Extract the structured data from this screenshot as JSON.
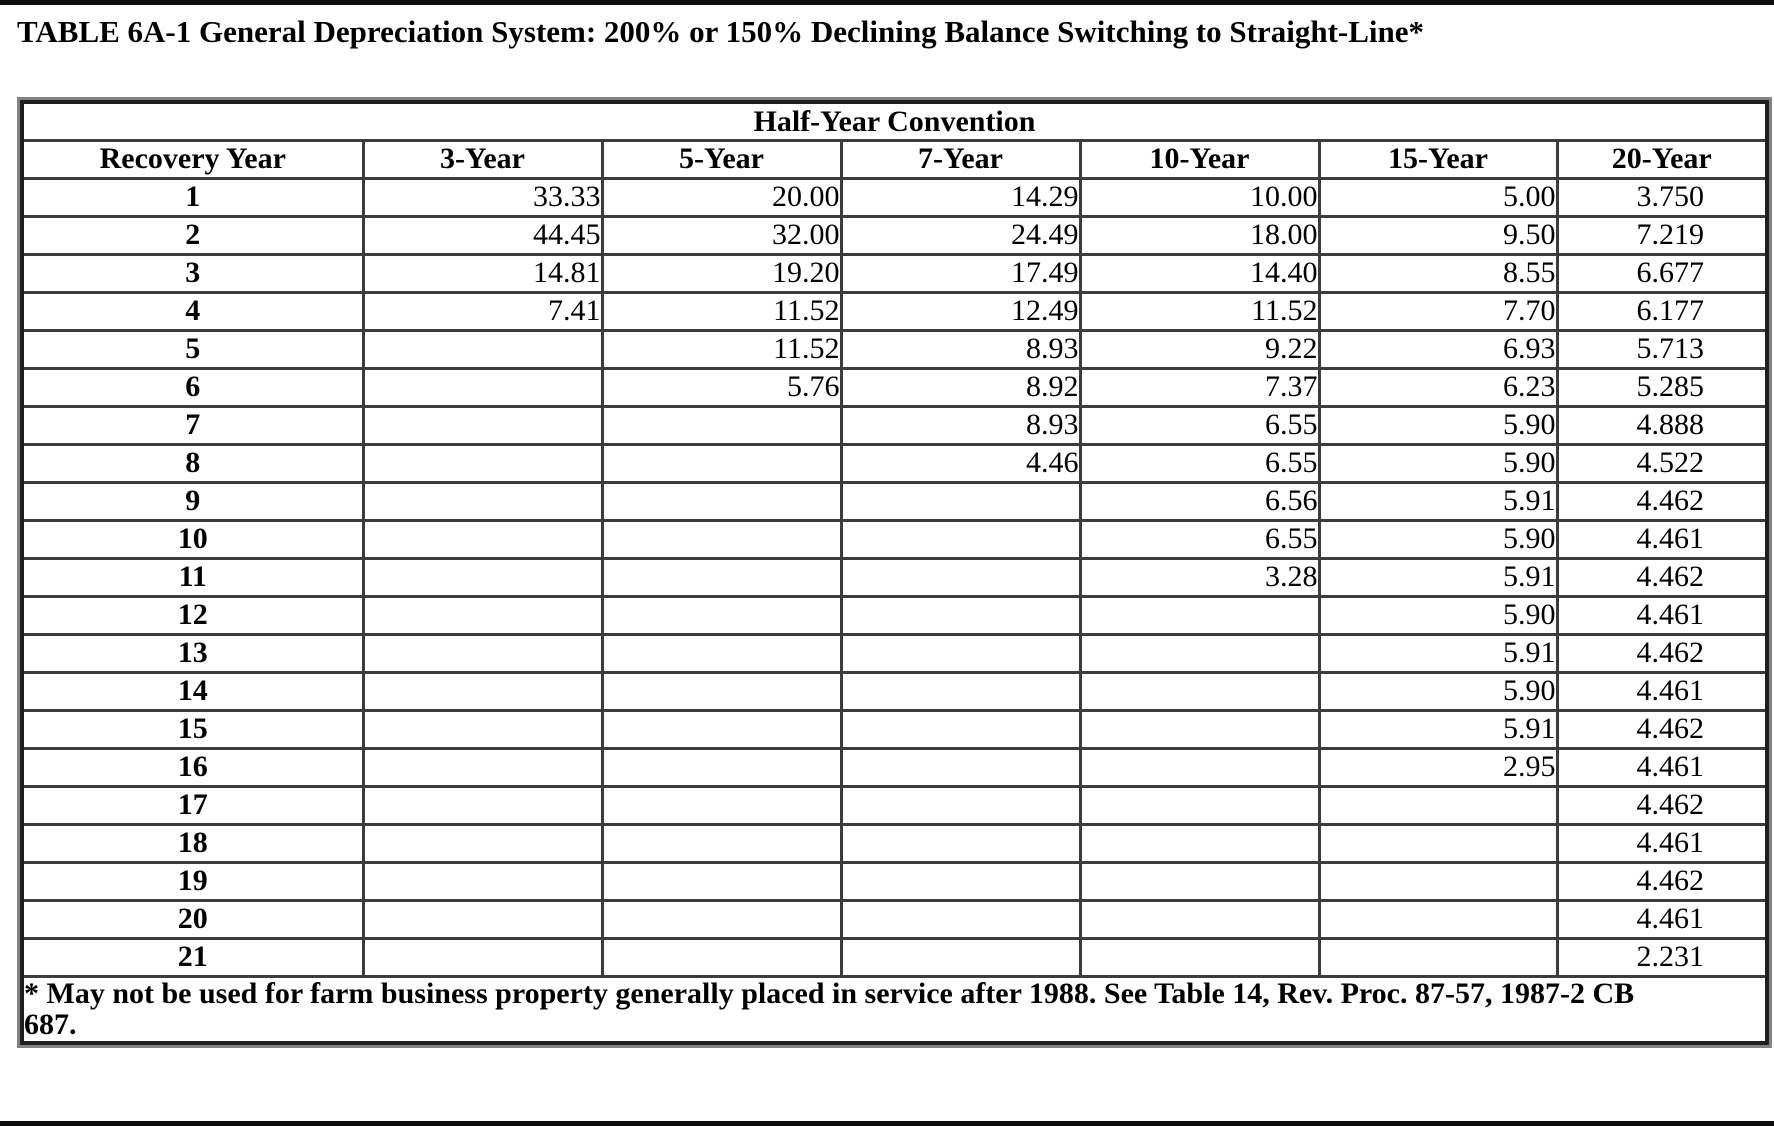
{
  "page": {
    "title": "TABLE 6A-1 General Depreciation System: 200% or 150% Declining Balance Switching to Straight-Line*"
  },
  "colors": {
    "text": "#000000",
    "page-bg": "#ffffff",
    "border-inner": "#3c3c3c",
    "border-outer": "#1f1f1f",
    "border-halo": "#828282",
    "edge-bar": "#0d0d0d"
  },
  "table": {
    "caption": "Half-Year Convention",
    "columns": [
      "Recovery Year",
      "3-Year",
      "5-Year",
      "7-Year",
      "10-Year",
      "15-Year",
      "20-Year"
    ],
    "rows": [
      {
        "year": "1",
        "values": [
          "33.33",
          "20.00",
          "14.29",
          "10.00",
          "5.00",
          "3.750"
        ]
      },
      {
        "year": "2",
        "values": [
          "44.45",
          "32.00",
          "24.49",
          "18.00",
          "9.50",
          "7.219"
        ]
      },
      {
        "year": "3",
        "values": [
          "14.81",
          "19.20",
          "17.49",
          "14.40",
          "8.55",
          "6.677"
        ]
      },
      {
        "year": "4",
        "values": [
          "7.41",
          "11.52",
          "12.49",
          "11.52",
          "7.70",
          "6.177"
        ]
      },
      {
        "year": "5",
        "values": [
          "",
          "11.52",
          "8.93",
          "9.22",
          "6.93",
          "5.713"
        ]
      },
      {
        "year": "6",
        "values": [
          "",
          "5.76",
          "8.92",
          "7.37",
          "6.23",
          "5.285"
        ]
      },
      {
        "year": "7",
        "values": [
          "",
          "",
          "8.93",
          "6.55",
          "5.90",
          "4.888"
        ]
      },
      {
        "year": "8",
        "values": [
          "",
          "",
          "4.46",
          "6.55",
          "5.90",
          "4.522"
        ]
      },
      {
        "year": "9",
        "values": [
          "",
          "",
          "",
          "6.56",
          "5.91",
          "4.462"
        ]
      },
      {
        "year": "10",
        "values": [
          "",
          "",
          "",
          "6.55",
          "5.90",
          "4.461"
        ]
      },
      {
        "year": "11",
        "values": [
          "",
          "",
          "",
          "3.28",
          "5.91",
          "4.462"
        ]
      },
      {
        "year": "12",
        "values": [
          "",
          "",
          "",
          "",
          "5.90",
          "4.461"
        ]
      },
      {
        "year": "13",
        "values": [
          "",
          "",
          "",
          "",
          "5.91",
          "4.462"
        ]
      },
      {
        "year": "14",
        "values": [
          "",
          "",
          "",
          "",
          "5.90",
          "4.461"
        ]
      },
      {
        "year": "15",
        "values": [
          "",
          "",
          "",
          "",
          "5.91",
          "4.462"
        ]
      },
      {
        "year": "16",
        "values": [
          "",
          "",
          "",
          "",
          "2.95",
          "4.461"
        ]
      },
      {
        "year": "17",
        "values": [
          "",
          "",
          "",
          "",
          "",
          "4.462"
        ]
      },
      {
        "year": "18",
        "values": [
          "",
          "",
          "",
          "",
          "",
          "4.461"
        ]
      },
      {
        "year": "19",
        "values": [
          "",
          "",
          "",
          "",
          "",
          "4.462"
        ]
      },
      {
        "year": "20",
        "values": [
          "",
          "",
          "",
          "",
          "",
          "4.461"
        ]
      },
      {
        "year": "21",
        "values": [
          "",
          "",
          "",
          "",
          "",
          "2.231"
        ]
      }
    ],
    "footnote_lines": [
      "* May not be used for farm business property generally placed in service after 1988. See Table 14, Rev. Proc. 87-57, 1987-2 CB",
      "687."
    ]
  }
}
